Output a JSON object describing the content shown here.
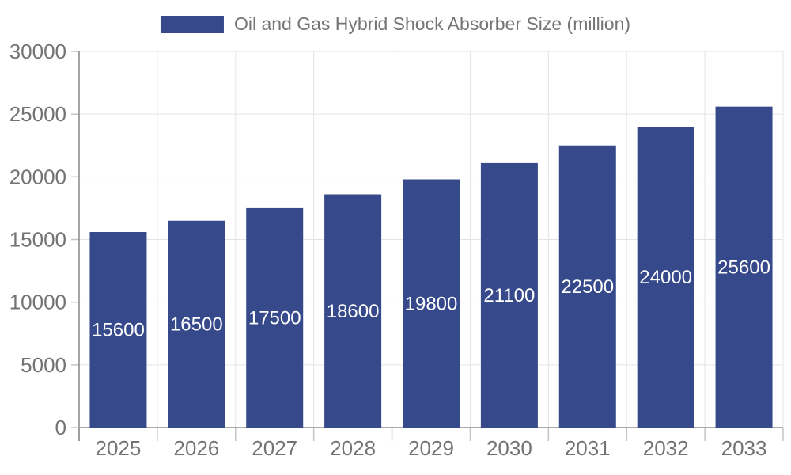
{
  "legend": {
    "label": "Oil and Gas Hybrid Shock Absorber Size (million)"
  },
  "chart_data": {
    "type": "bar",
    "title": "Oil and Gas Hybrid Shock Absorber Size (million)",
    "categories": [
      "2025",
      "2026",
      "2027",
      "2028",
      "2029",
      "2030",
      "2031",
      "2032",
      "2033"
    ],
    "series": [
      {
        "name": "Oil and Gas Hybrid Shock Absorber Size (million)",
        "values": [
          15600,
          16500,
          17500,
          18600,
          19800,
          21100,
          22500,
          24000,
          25600
        ]
      }
    ],
    "value_labels": [
      "15600",
      "16500",
      "17500",
      "18600",
      "19800",
      "21100",
      "22500",
      "24000",
      "25600"
    ],
    "xlabel": "",
    "ylabel": "",
    "ylim": [
      0,
      30000
    ],
    "ytick_step": 5000,
    "yticks": [
      "0",
      "5000",
      "10000",
      "15000",
      "20000",
      "25000",
      "30000"
    ],
    "grid": true,
    "legend_position": "top-center",
    "colors": {
      "bar": "#36498a",
      "value_label": "#ffffff",
      "axis_text": "#737373",
      "grid_line": "#e4e4e8",
      "y_axis_line": "#878787",
      "x_axis_line": "#a9a9a9",
      "tick": "#c4c4c8",
      "background": "#ffffff"
    }
  }
}
